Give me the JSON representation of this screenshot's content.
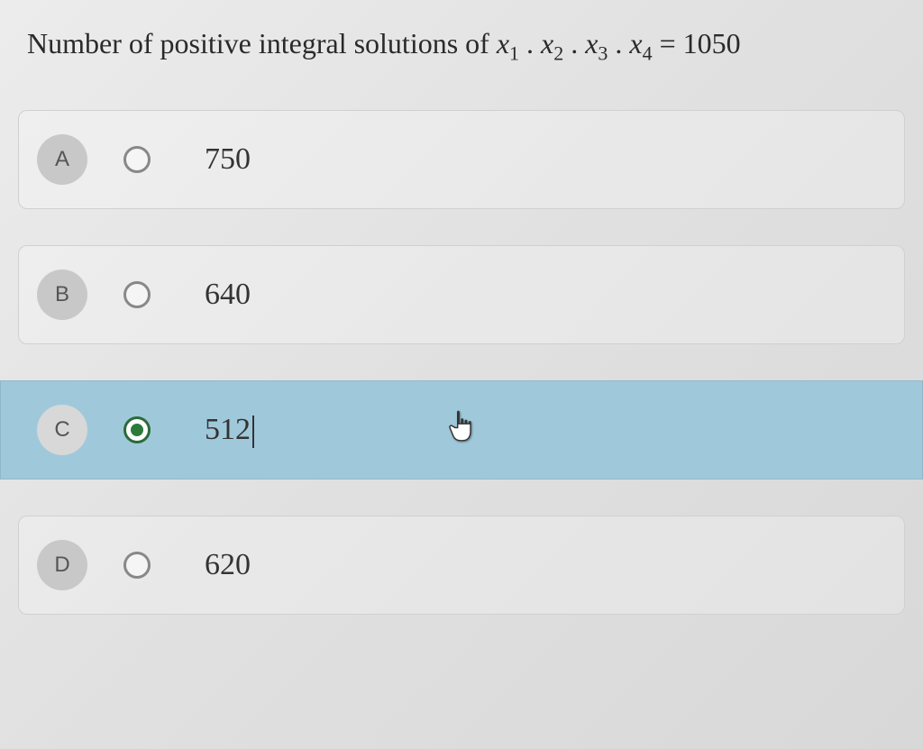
{
  "question": {
    "prefix": "Number of positive integral solutions of ",
    "expression_html": "<span class='var'>x</span><sub>1</sub> . <span class='var'>x</span><sub>2</sub> . <span class='var'>x</span><sub>3</sub> . <span class='var'>x</span><sub>4</sub> = 1050"
  },
  "options": [
    {
      "letter": "A",
      "value": "750",
      "selected": false
    },
    {
      "letter": "B",
      "value": "640",
      "selected": false
    },
    {
      "letter": "C",
      "value": "512",
      "selected": true,
      "show_caret": true,
      "show_cursor": true
    },
    {
      "letter": "D",
      "value": "620",
      "selected": false
    }
  ],
  "colors": {
    "selected_bg": "#9fc9da",
    "letter_bg": "#c8c8c8",
    "radio_selected": "#2a7b3a",
    "page_bg": "#e8e8e8"
  }
}
